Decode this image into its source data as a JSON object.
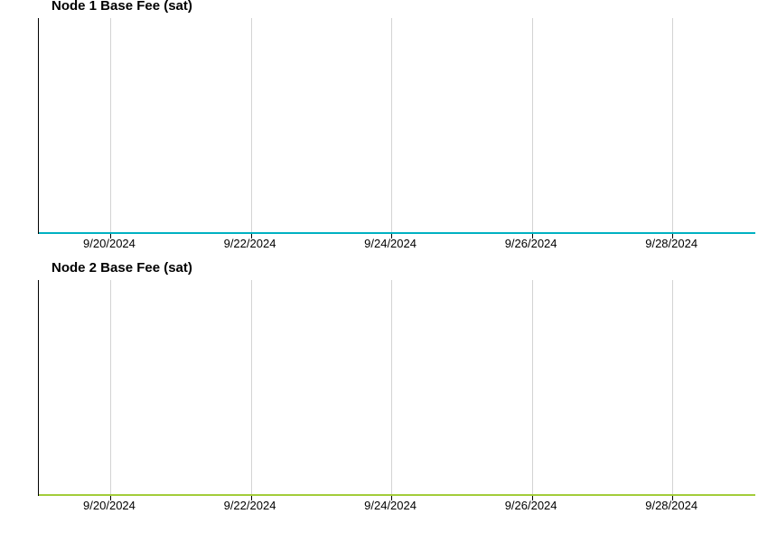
{
  "colors": {
    "background": "#ffffff",
    "axis": "#000000",
    "gridline": "#d3d3d3",
    "tick_label": "#000000"
  },
  "chart_data": [
    {
      "type": "line",
      "title": "Node 1 Base Fee (sat)",
      "xlabel": "",
      "ylabel": "",
      "x_tick_labels": [
        "9/20/2024",
        "9/22/2024",
        "9/24/2024",
        "9/26/2024",
        "9/28/2024"
      ],
      "x_range": [
        "9/19/2024",
        "9/29/2024"
      ],
      "y_tick_labels": [],
      "grid": "vertical-only",
      "legend": "none",
      "series": [
        {
          "name": "Node 1 Base Fee (sat)",
          "color": "#00b1c2",
          "x": [
            "9/19/2024",
            "9/20/2024",
            "9/21/2024",
            "9/22/2024",
            "9/23/2024",
            "9/24/2024",
            "9/25/2024",
            "9/26/2024",
            "9/27/2024",
            "9/28/2024",
            "9/29/2024"
          ],
          "values": [
            0,
            0,
            0,
            0,
            0,
            0,
            0,
            0,
            0,
            0,
            0
          ],
          "description": "flat line at 0 along the bottom x-axis for the full date range"
        }
      ]
    },
    {
      "type": "line",
      "title": "Node 2 Base Fee (sat)",
      "xlabel": "",
      "ylabel": "",
      "x_tick_labels": [
        "9/20/2024",
        "9/22/2024",
        "9/24/2024",
        "9/26/2024",
        "9/28/2024"
      ],
      "x_range": [
        "9/19/2024",
        "9/29/2024"
      ],
      "y_tick_labels": [],
      "grid": "vertical-only",
      "legend": "none",
      "series": [
        {
          "name": "Node 2 Base Fee (sat)",
          "color": "#a2cc3a",
          "x": [
            "9/19/2024",
            "9/20/2024",
            "9/21/2024",
            "9/22/2024",
            "9/23/2024",
            "9/24/2024",
            "9/25/2024",
            "9/26/2024",
            "9/27/2024",
            "9/28/2024",
            "9/29/2024"
          ],
          "values": [
            0,
            0,
            0,
            0,
            0,
            0,
            0,
            0,
            0,
            0,
            0
          ],
          "description": "flat line at 0 along the bottom x-axis for the full date range"
        }
      ]
    }
  ]
}
